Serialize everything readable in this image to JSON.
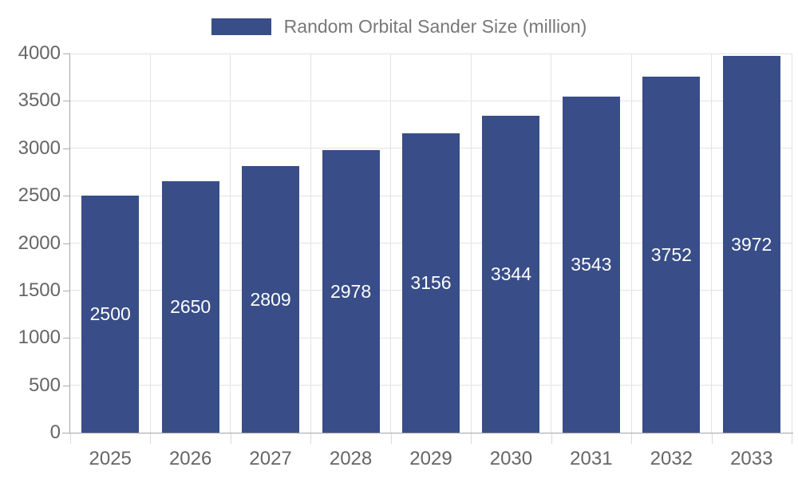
{
  "legend": {
    "label": "Random Orbital Sander Size (million)"
  },
  "chart_data": {
    "type": "bar",
    "title": "Random Orbital Sander Size (million)",
    "series_name": "Random Orbital Sander Size (million)",
    "categories": [
      "2025",
      "2026",
      "2027",
      "2028",
      "2029",
      "2030",
      "2031",
      "2032",
      "2033"
    ],
    "values": [
      2500,
      2650,
      2809,
      2978,
      3156,
      3344,
      3543,
      3752,
      3972
    ],
    "xlabel": "",
    "ylabel": "",
    "ylim": [
      0,
      4000
    ],
    "yticks": [
      0,
      500,
      1000,
      1500,
      2000,
      2500,
      3000,
      3500,
      4000
    ],
    "grid": true,
    "legend_position": "top",
    "value_labels": "inside-center",
    "bar_color": "#394E88",
    "value_label_color": "#ffffff"
  },
  "style_colors": {
    "axis_line": "#a6a6a6",
    "grid_line": "#e3e3e3",
    "tick_label": "#666666",
    "legend_text": "#787878",
    "background": "#ffffff"
  }
}
